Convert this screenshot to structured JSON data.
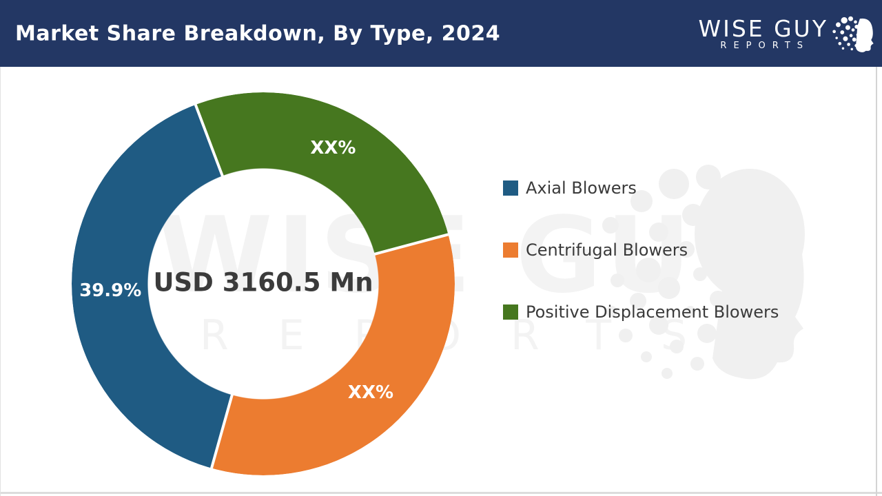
{
  "header": {
    "title": "Market Share Breakdown, By Type, 2024",
    "logo": {
      "line1": "WISE GUY",
      "line2": "REPORTS"
    }
  },
  "watermark": {
    "line1": "WISE GUY",
    "line2": "REPORTS",
    "color": "#f3f3f3"
  },
  "chart_data": {
    "type": "pie",
    "subtype": "donut",
    "title": "Market Share Breakdown, By Type, 2024",
    "center_label": "USD 3160.5 Mn",
    "start_angle_deg": -20.7,
    "legend_position": "right",
    "segments": [
      {
        "label": "Positive Displacement Blowers",
        "display_value": "XX%",
        "percent": 26.6,
        "color": "#46771F"
      },
      {
        "label": "Centrifugal Blowers",
        "display_value": "XX%",
        "percent": 33.5,
        "color": "#EC7C30"
      },
      {
        "label": "Axial Blowers",
        "display_value": "39.9%",
        "percent": 39.9,
        "color": "#1F5B83"
      }
    ],
    "legend": [
      {
        "label": "Axial Blowers",
        "color": "#1F5B83"
      },
      {
        "label": "Centrifugal Blowers",
        "color": "#EC7C30"
      },
      {
        "label": "Positive Displacement Blowers",
        "color": "#46771F"
      }
    ]
  }
}
